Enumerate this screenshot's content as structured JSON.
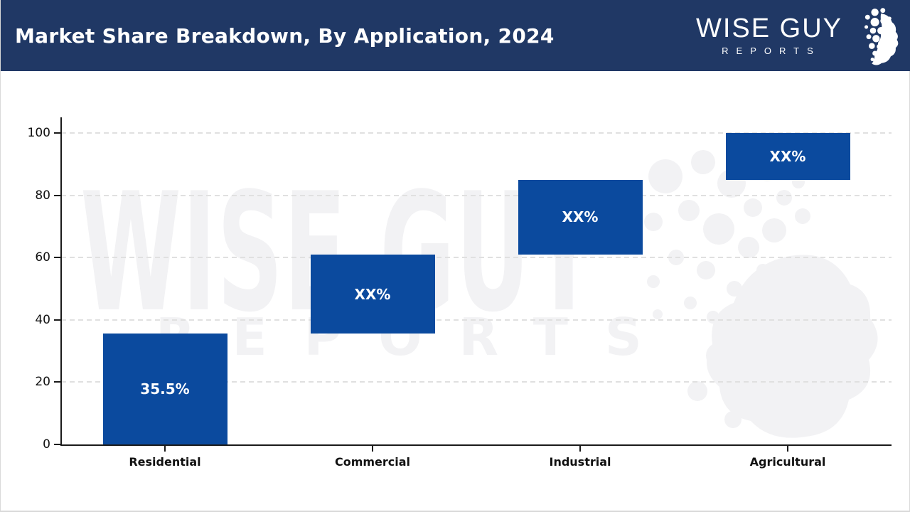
{
  "header": {
    "title": "Market Share Breakdown, By Application, 2024",
    "bg_color": "#203865",
    "logo": {
      "line1": "WISE GUY",
      "line2": "REPORTS"
    }
  },
  "watermark": {
    "line1": "WISE GUY",
    "line2": "REPORTS"
  },
  "chart_data": {
    "type": "bar",
    "subtype": "waterfall-floating-bars",
    "title": "Market Share Breakdown, By Application, 2024",
    "categories": [
      "Residential",
      "Commercial",
      "Industrial",
      "Agricultural"
    ],
    "series": [
      {
        "name": "Market share by application (%)",
        "segments": [
          {
            "category": "Residential",
            "start": 0,
            "end": 35.5,
            "label": "35.5%"
          },
          {
            "category": "Commercial",
            "start": 35.5,
            "end": 61,
            "label": "XX%"
          },
          {
            "category": "Industrial",
            "start": 61,
            "end": 85,
            "label": "XX%"
          },
          {
            "category": "Agricultural",
            "start": 85,
            "end": 100,
            "label": "XX%"
          }
        ]
      }
    ],
    "xlabel": "",
    "ylabel": "",
    "y_ticks": [
      0,
      20,
      40,
      60,
      80,
      100
    ],
    "ylim": [
      0,
      105
    ],
    "grid": "horizontal-dashed",
    "legend": "none",
    "bar_color": "#0b4a9e",
    "bar_label_color": "#ffffff",
    "axis_color": "#1a1a1a",
    "grid_color": "#e0e0e0"
  }
}
